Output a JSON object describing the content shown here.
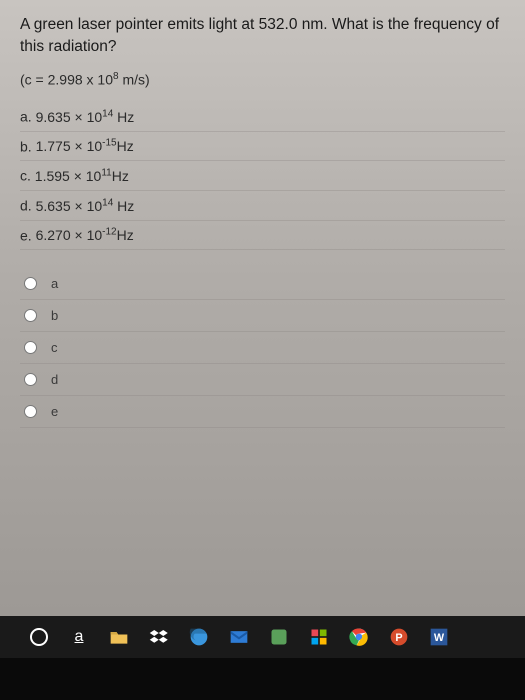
{
  "question": {
    "text": "A green laser pointer emits light at 532.0 nm. What is the frequency of this radiation?",
    "formula_html": "(c = 2.998 x 10<span class='sup'>8</span> m/s)",
    "options": [
      {
        "letter": "a",
        "text_html": "9.635 × 10<span class='sup'>14</span> Hz"
      },
      {
        "letter": "b",
        "text_html": "1.775 × 10<span class='sup'>-15</span>Hz"
      },
      {
        "letter": "c",
        "text_html": "1.595 × 10<span class='sup'>11</span>Hz"
      },
      {
        "letter": "d",
        "text_html": "5.635 × 10<span class='sup'>14</span> Hz"
      },
      {
        "letter": "e",
        "text_html": "6.270 × 10<span class='sup'>-12</span>Hz"
      }
    ],
    "radio_choices": [
      "a",
      "b",
      "c",
      "d",
      "e"
    ]
  },
  "taskbar": {
    "background": "#1a1a1a",
    "icons": [
      {
        "name": "cortana",
        "type": "circle"
      },
      {
        "name": "a-underline",
        "type": "text",
        "label": "a"
      },
      {
        "name": "file-explorer",
        "type": "folder",
        "color": "#f0c157"
      },
      {
        "name": "dropbox",
        "type": "dropbox",
        "color": "#ffffff"
      },
      {
        "name": "edge",
        "type": "edge",
        "color": "#3a96dd"
      },
      {
        "name": "mail",
        "type": "mail",
        "color": "#2e7cd6"
      },
      {
        "name": "app1",
        "type": "square",
        "color": "#5aa05a"
      },
      {
        "name": "store",
        "type": "grid",
        "color": "#e0e0e0"
      },
      {
        "name": "chrome",
        "type": "chrome"
      },
      {
        "name": "powerpoint",
        "type": "circle-p",
        "color": "#d64c2c",
        "label": "P"
      },
      {
        "name": "word",
        "type": "square-w",
        "color": "#2b579a",
        "label": "W"
      }
    ]
  }
}
